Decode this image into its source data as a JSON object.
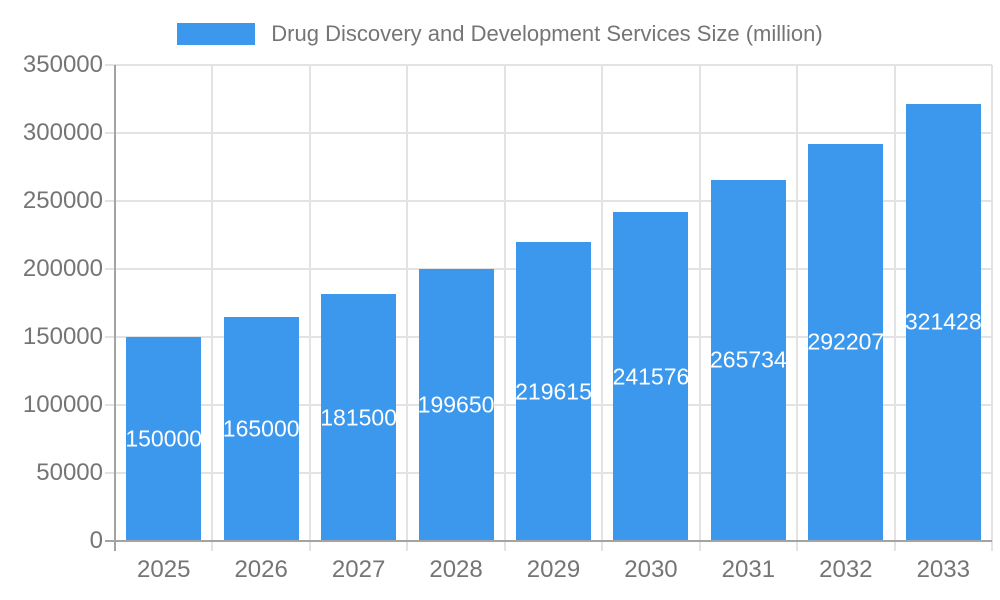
{
  "chart_data": {
    "type": "bar",
    "title": "Drug Discovery and Development Services Size (million)",
    "categories": [
      "2025",
      "2026",
      "2027",
      "2028",
      "2029",
      "2030",
      "2031",
      "2032",
      "2033"
    ],
    "values": [
      150000,
      165000,
      181500,
      199650,
      219615,
      241576,
      265734,
      292207,
      321428
    ],
    "bar_value_labels": [
      "150000",
      "165000",
      "181500",
      "199650",
      "219615",
      "241576",
      "265734",
      "292207",
      "321428"
    ],
    "xlabel": "",
    "ylabel": "",
    "ylim": [
      0,
      350000
    ],
    "yticks": [
      0,
      50000,
      100000,
      150000,
      200000,
      250000,
      300000,
      350000
    ],
    "grid": true,
    "legend_position": "top",
    "colors": {
      "bar": "#3B98ED",
      "bar_label_text": "#FFFFFF",
      "grid": "#E3E3E3",
      "axis": "#A3A3A3",
      "text": "#757575",
      "background": "#FFFFFF"
    }
  }
}
